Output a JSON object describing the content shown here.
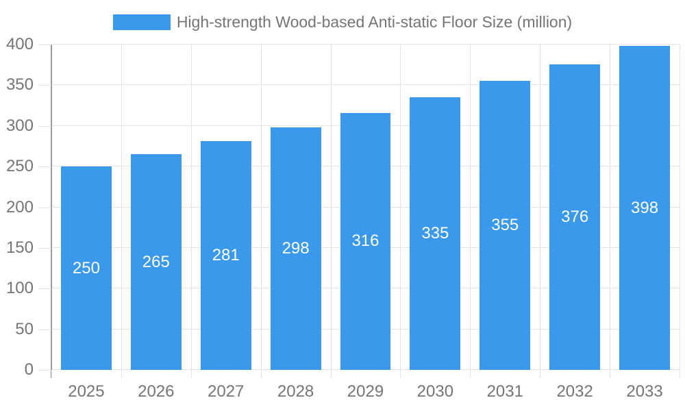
{
  "chart_data": {
    "type": "bar",
    "title": "High-strength Wood-based Anti-static Floor Size (million)",
    "categories": [
      "2025",
      "2026",
      "2027",
      "2028",
      "2029",
      "2030",
      "2031",
      "2032",
      "2033"
    ],
    "series": [
      {
        "name": "High-strength Wood-based Anti-static Floor Size (million)",
        "values": [
          250,
          265,
          281,
          298,
          316,
          335,
          355,
          376,
          398
        ]
      }
    ],
    "xlabel": "",
    "ylabel": "",
    "ylim": [
      0,
      400
    ],
    "yticks": [
      0,
      50,
      100,
      150,
      200,
      250,
      300,
      350,
      400
    ],
    "grid": "horizontal-and-vertical",
    "legend_position": "top-center",
    "bar_value_labels": "inside-center",
    "colors": {
      "bar": "#3B99EC",
      "grid": "#e3e3e3",
      "axis_line": "#9a9a9a",
      "tick_text": "#757575",
      "value_label_text": "#ffffff",
      "background": "#ffffff"
    }
  }
}
